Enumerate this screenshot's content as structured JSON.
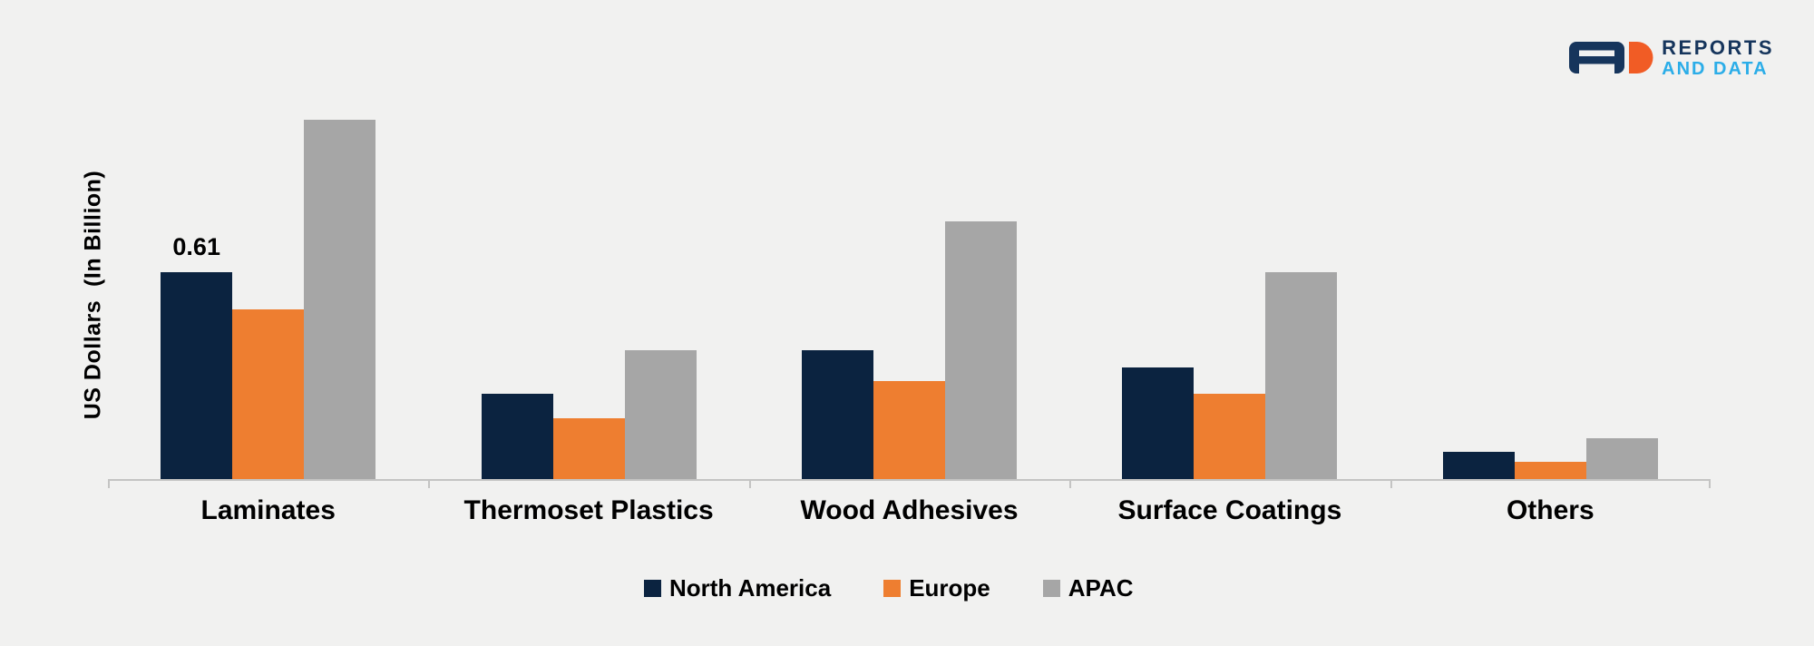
{
  "page": {
    "background_color": "#f1f1f0",
    "axis_color": "#c4c4c3",
    "text_color": "#000000"
  },
  "logo": {
    "line1": "REPORTS",
    "line2": "AND DATA",
    "mark_r_color": "#16355c",
    "mark_d_color": "#f15c25",
    "line1_color": "#16355c",
    "line2_color": "#2bade8"
  },
  "chart_data": {
    "type": "bar",
    "title": "",
    "xlabel": "",
    "ylabel": "US Dollars  (In Billion)",
    "categories": [
      "Laminates",
      "Thermoset Plastics",
      "Wood Adhesives",
      "Surface Coatings",
      "Others"
    ],
    "series": [
      {
        "name": "North America",
        "color": "#0b2340",
        "values": [
          0.61,
          0.25,
          0.38,
          0.33,
          0.08
        ]
      },
      {
        "name": "Europe",
        "color": "#ee7e30",
        "values": [
          0.5,
          0.18,
          0.29,
          0.25,
          0.05
        ]
      },
      {
        "name": "APAC",
        "color": "#a6a6a6",
        "values": [
          1.06,
          0.38,
          0.76,
          0.61,
          0.12
        ]
      }
    ],
    "data_labels": [
      {
        "series": "North America",
        "category": "Laminates",
        "text": "0.61"
      }
    ],
    "ylim": [
      0,
      1.15
    ],
    "grid": false,
    "y_axis_ticks_visible": false,
    "legend_position": "bottom",
    "legend_entries": [
      "North America",
      "Europe",
      "APAC"
    ]
  }
}
